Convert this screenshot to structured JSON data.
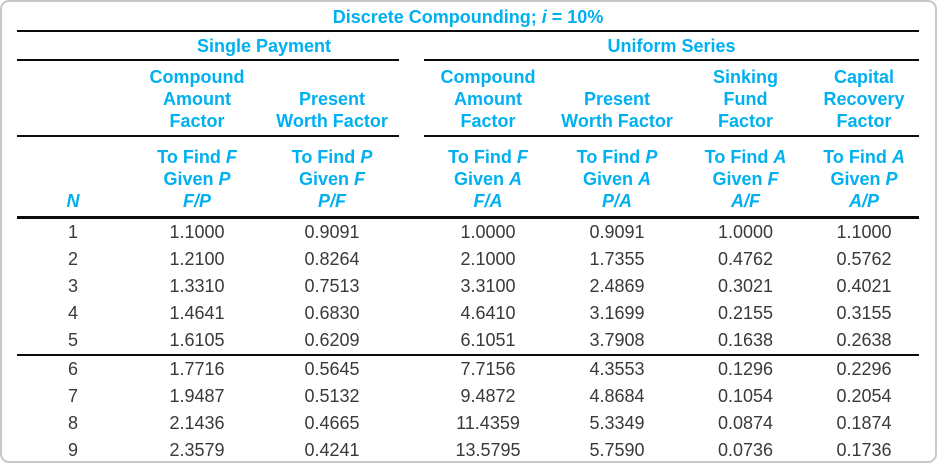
{
  "colors": {
    "accent": "#00B0F0",
    "data_text": "#3A3A3A",
    "rule": "#0C0C0C",
    "frame_border": "#C8C8C8"
  },
  "title": {
    "before": "Discrete Compounding; ",
    "variable": "i",
    "after": " = 10%"
  },
  "table": {
    "group_headers": {
      "single_payment": "Single Payment",
      "uniform_series": "Uniform Series"
    },
    "n_symbol": "N",
    "to_find_label": "To Find ",
    "given_label": "Given ",
    "columns": [
      {
        "key": "FP",
        "group": "single",
        "title_lines": [
          "Compound",
          "Amount",
          "Factor"
        ],
        "find": "F",
        "given": "P",
        "symbol": "F/P"
      },
      {
        "key": "PF",
        "group": "single",
        "title_lines": [
          "Present",
          "Worth Factor"
        ],
        "find": "P",
        "given": "F",
        "symbol": "P/F"
      },
      {
        "key": "FA",
        "group": "uniform",
        "title_lines": [
          "Compound",
          "Amount",
          "Factor"
        ],
        "find": "F",
        "given": "A",
        "symbol": "F/A"
      },
      {
        "key": "PA",
        "group": "uniform",
        "title_lines": [
          "Present",
          "Worth Factor"
        ],
        "find": "P",
        "given": "A",
        "symbol": "P/A"
      },
      {
        "key": "AF",
        "group": "uniform",
        "title_lines": [
          "Sinking",
          "Fund",
          "Factor"
        ],
        "find": "A",
        "given": "F",
        "symbol": "A/F"
      },
      {
        "key": "AP",
        "group": "uniform",
        "title_lines": [
          "Capital",
          "Recovery",
          "Factor"
        ],
        "find": "A",
        "given": "P",
        "symbol": "A/P"
      }
    ],
    "section_break_after_row": 5,
    "rows": [
      {
        "n": "1",
        "FP": "1.1000",
        "PF": "0.9091",
        "FA": "1.0000",
        "PA": "0.9091",
        "AF": "1.0000",
        "AP": "1.1000"
      },
      {
        "n": "2",
        "FP": "1.2100",
        "PF": "0.8264",
        "FA": "2.1000",
        "PA": "1.7355",
        "AF": "0.4762",
        "AP": "0.5762"
      },
      {
        "n": "3",
        "FP": "1.3310",
        "PF": "0.7513",
        "FA": "3.3100",
        "PA": "2.4869",
        "AF": "0.3021",
        "AP": "0.4021"
      },
      {
        "n": "4",
        "FP": "1.4641",
        "PF": "0.6830",
        "FA": "4.6410",
        "PA": "3.1699",
        "AF": "0.2155",
        "AP": "0.3155"
      },
      {
        "n": "5",
        "FP": "1.6105",
        "PF": "0.6209",
        "FA": "6.1051",
        "PA": "3.7908",
        "AF": "0.1638",
        "AP": "0.2638"
      },
      {
        "n": "6",
        "FP": "1.7716",
        "PF": "0.5645",
        "FA": "7.7156",
        "PA": "4.3553",
        "AF": "0.1296",
        "AP": "0.2296"
      },
      {
        "n": "7",
        "FP": "1.9487",
        "PF": "0.5132",
        "FA": "9.4872",
        "PA": "4.8684",
        "AF": "0.1054",
        "AP": "0.2054"
      },
      {
        "n": "8",
        "FP": "2.1436",
        "PF": "0.4665",
        "FA": "11.4359",
        "PA": "5.3349",
        "AF": "0.0874",
        "AP": "0.1874"
      },
      {
        "n": "9",
        "FP": "2.3579",
        "PF": "0.4241",
        "FA": "13.5795",
        "PA": "5.7590",
        "AF": "0.0736",
        "AP": "0.1736"
      }
    ]
  },
  "chart_data": {
    "type": "table",
    "title": "Discrete Compounding; i = 10%",
    "column_groups": [
      {
        "label": "Single Payment",
        "columns": [
          "F/P",
          "P/F"
        ]
      },
      {
        "label": "Uniform Series",
        "columns": [
          "F/A",
          "P/A",
          "A/F",
          "A/P"
        ]
      }
    ],
    "columns": [
      "N",
      "F/P",
      "P/F",
      "F/A",
      "P/A",
      "A/F",
      "A/P"
    ],
    "rows": [
      [
        1,
        1.1,
        0.9091,
        1.0,
        0.9091,
        1.0,
        1.1
      ],
      [
        2,
        1.21,
        0.8264,
        2.1,
        1.7355,
        0.4762,
        0.5762
      ],
      [
        3,
        1.331,
        0.7513,
        3.31,
        2.4869,
        0.3021,
        0.4021
      ],
      [
        4,
        1.4641,
        0.683,
        4.641,
        3.1699,
        0.2155,
        0.3155
      ],
      [
        5,
        1.6105,
        0.6209,
        6.1051,
        3.7908,
        0.1638,
        0.2638
      ],
      [
        6,
        1.7716,
        0.5645,
        7.7156,
        4.3553,
        0.1296,
        0.2296
      ],
      [
        7,
        1.9487,
        0.5132,
        9.4872,
        4.8684,
        0.1054,
        0.2054
      ],
      [
        8,
        2.1436,
        0.4665,
        11.4359,
        5.3349,
        0.0874,
        0.1874
      ],
      [
        9,
        2.3579,
        0.4241,
        13.5795,
        5.759,
        0.0736,
        0.1736
      ]
    ]
  }
}
